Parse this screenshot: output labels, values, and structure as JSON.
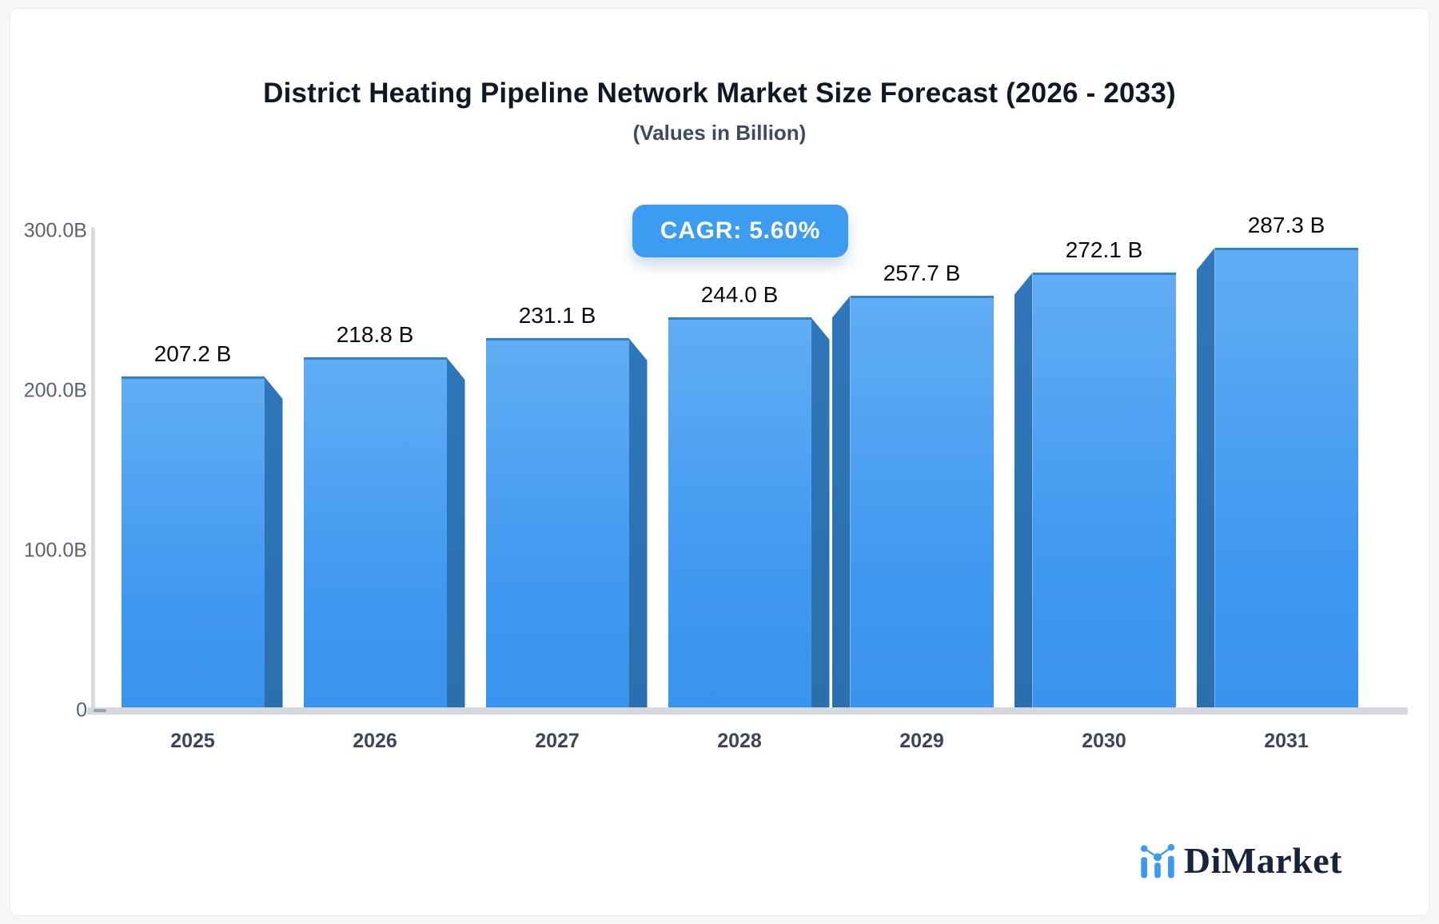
{
  "header": {
    "title": "District Heating Pipeline Network Market Size Forecast (2026 - 2033)",
    "subtitle": "(Values in Billion)"
  },
  "badge": {
    "label": "CAGR: 5.60%"
  },
  "chart_data": {
    "type": "bar",
    "title": "District Heating Pipeline Network Market Size Forecast (2026 - 2033)",
    "subtitle": "(Values in Billion)",
    "cagr": "5.60%",
    "unit": "Billion",
    "categories": [
      "2025",
      "2026",
      "2027",
      "2028",
      "2029",
      "2030",
      "2031"
    ],
    "values": [
      207.2,
      218.8,
      231.1,
      244.0,
      257.7,
      272.1,
      287.3
    ],
    "value_labels": [
      "207.2 B",
      "218.8 B",
      "231.1 B",
      "244.0 B",
      "257.7 B",
      "272.1 B",
      "287.3 B"
    ],
    "y_ticks": [
      {
        "label": "300.0B",
        "value": 300
      },
      {
        "label": "200.0B",
        "value": 200
      },
      {
        "label": "100.0B",
        "value": 100
      },
      {
        "label": "0",
        "value": 0
      }
    ],
    "ylim": [
      0,
      300
    ],
    "grid": false,
    "legend": "none",
    "bar_color": "#3e97f0",
    "bar_side_color": "#2c72b4",
    "axis_color": "#d6d9dd"
  },
  "logo": {
    "text": "DiMarket",
    "icon": "bar-line-chart-icon",
    "icon_color": "#3b9af2",
    "text_color": "#17243d"
  }
}
